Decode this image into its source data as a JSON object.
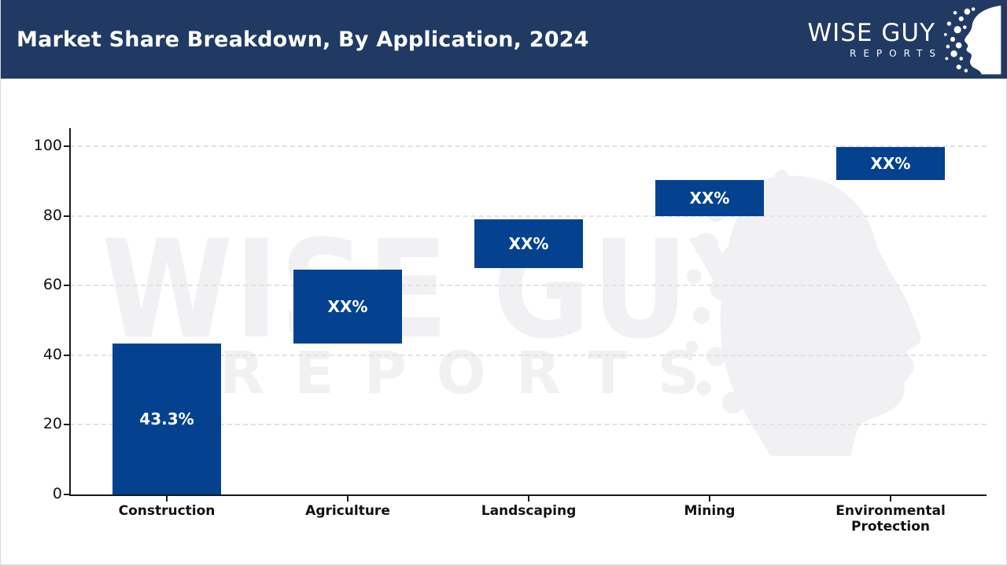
{
  "header": {
    "title": "Market Share Breakdown, By Application, 2024",
    "background_color": "#203A64",
    "logo": {
      "line1": "WISE GUY",
      "line2": "REPORTS"
    }
  },
  "watermark": {
    "line1": "WISE GUY",
    "line2": "REPORTS"
  },
  "chart_data": {
    "type": "bar",
    "subtype": "waterfall",
    "title": "Market Share Breakdown, By Application, 2024",
    "categories": [
      "Construction",
      "Agriculture",
      "Landscaping",
      "Mining",
      "Environmental Protection"
    ],
    "segments": [
      {
        "category": "Construction",
        "start": 0,
        "end": 43.3,
        "label": "43.3%"
      },
      {
        "category": "Agriculture",
        "start": 43.3,
        "end": 64.6,
        "label": "XX%"
      },
      {
        "category": "Landscaping",
        "start": 64.9,
        "end": 78.9,
        "label": "XX%"
      },
      {
        "category": "Mining",
        "start": 79.8,
        "end": 90.4,
        "label": "XX%"
      },
      {
        "category": "Environmental Protection",
        "start": 90.4,
        "end": 99.7,
        "label": "XX%"
      }
    ],
    "bar_color": "#04428F",
    "bar_label_color": "#ffffff",
    "yticks": [
      0,
      20,
      40,
      60,
      80,
      100
    ],
    "ylim": [
      0,
      105
    ],
    "xlabel": "",
    "ylabel": "",
    "grid": "horizontal-dashed",
    "legend": "none"
  }
}
